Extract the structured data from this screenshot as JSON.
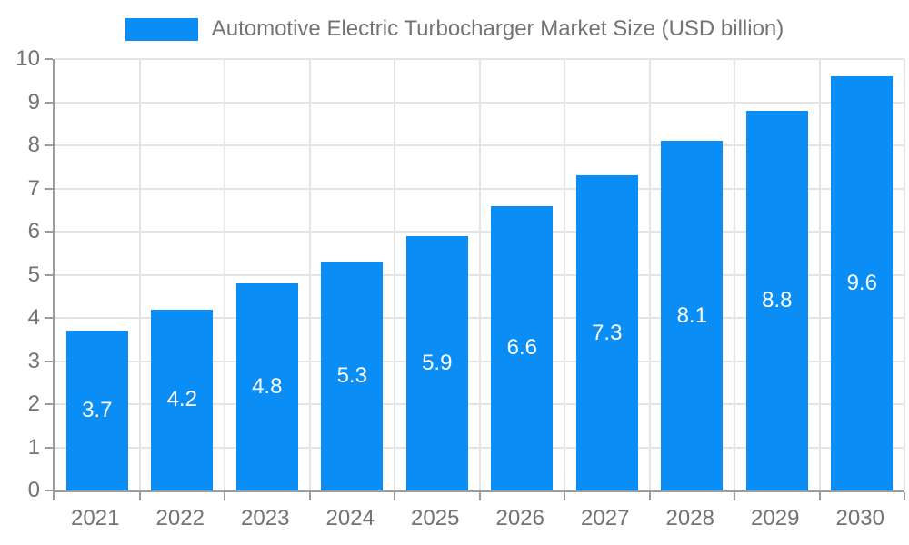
{
  "chart_data": {
    "type": "bar",
    "title": "Automotive Electric Turbocharger Market Size (USD billion)",
    "categories": [
      "2021",
      "2022",
      "2023",
      "2024",
      "2025",
      "2026",
      "2027",
      "2028",
      "2029",
      "2030"
    ],
    "values": [
      3.7,
      4.2,
      4.8,
      5.3,
      5.9,
      6.6,
      7.3,
      8.1,
      8.8,
      9.6
    ],
    "value_labels": [
      "3.7",
      "4.2",
      "4.8",
      "5.3",
      "5.9",
      "6.6",
      "7.3",
      "8.1",
      "8.8",
      "9.6"
    ],
    "xlabel": "",
    "ylabel": "",
    "ylim": [
      0,
      10
    ],
    "y_ticks": [
      0,
      1,
      2,
      3,
      4,
      5,
      6,
      7,
      8,
      9,
      10
    ],
    "grid": true,
    "legend_position": "top-center",
    "colors": {
      "bar": "#0a8ef5",
      "value_label": "#ffffff",
      "axis_text": "#737373",
      "grid_line": "#e4e4e4",
      "axis_line": "#9c9c9c",
      "background": "#ffffff"
    }
  }
}
